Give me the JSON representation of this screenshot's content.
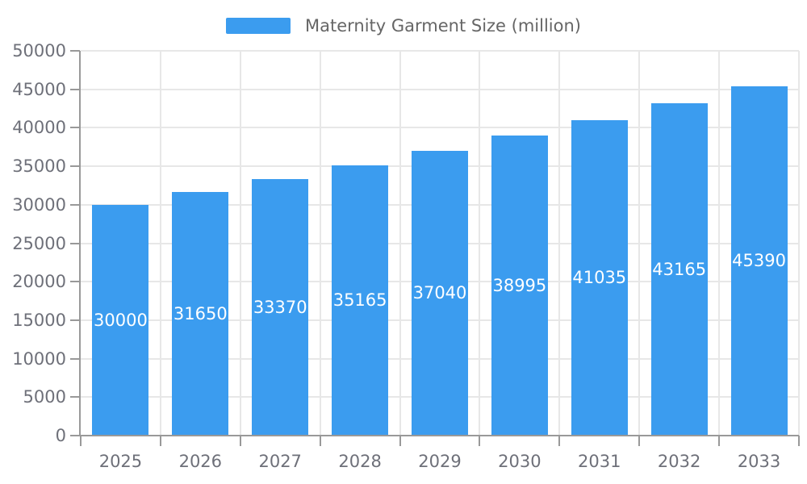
{
  "legend": {
    "items": [
      {
        "label": "Maternity Garment Size (million)",
        "color": "#3B9CEF"
      }
    ]
  },
  "chart_data": {
    "type": "bar",
    "title": "",
    "categories": [
      "2025",
      "2026",
      "2027",
      "2028",
      "2029",
      "2030",
      "2031",
      "2032",
      "2033"
    ],
    "series": [
      {
        "name": "Maternity Garment Size (million)",
        "color": "#3B9CEF",
        "values": [
          30000,
          31650,
          33370,
          35165,
          37040,
          38995,
          41035,
          43165,
          45390
        ]
      }
    ],
    "xlabel": "",
    "ylabel": "",
    "ylim": [
      0,
      50000
    ],
    "ytick_step": 5000,
    "ytick_labels": [
      "0",
      "5000",
      "10000",
      "15000",
      "20000",
      "25000",
      "30000",
      "35000",
      "40000",
      "45000",
      "50000"
    ],
    "grid": true,
    "legend_position": "top",
    "data_labels": {
      "position": "inside-center",
      "color": "#FFFFFF"
    }
  }
}
